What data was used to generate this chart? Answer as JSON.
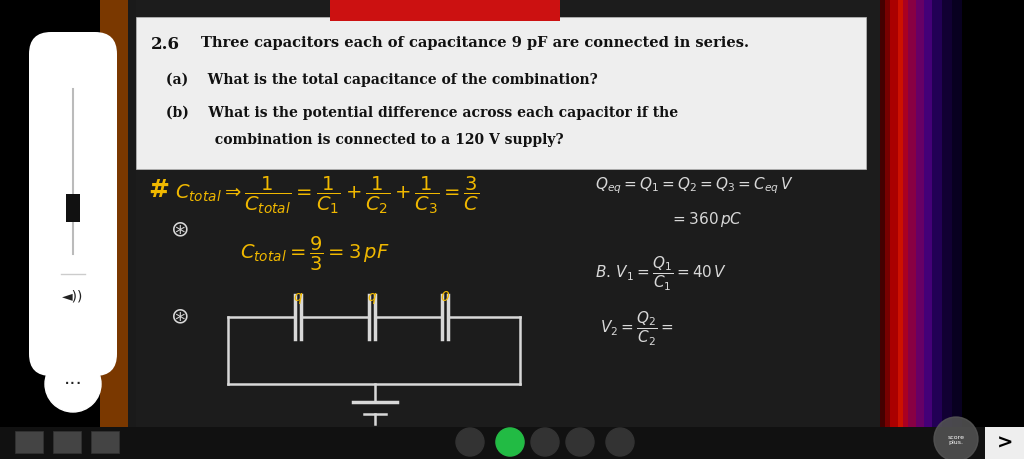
{
  "bg_outer": "#000000",
  "bg_center": "#1e1e1e",
  "left_panel_color": "#000000",
  "right_gradient_colors": [
    "#cc0000",
    "#8800aa",
    "#000000"
  ],
  "top_red_bar": "#cc1111",
  "white_box_bg": "#e8e8e8",
  "question_number": "2.6",
  "question_text": "Three capacitors each of capacitance 9 pF are connected in series.",
  "part_a": "(a)    What is the total capacitance of the combination?",
  "part_b_line1": "(b)    What is the potential difference across each capacitor if the",
  "part_b_line2": "          combination is connected to a 120 V supply?",
  "chalk_yellow": "#f0b800",
  "chalk_white": "#d8d8d8",
  "slider_white": "#ffffff",
  "slider_handle": "#222222",
  "volume_icon_color": "#111111",
  "dots_color": "#111111",
  "bottom_bar_bg": "#111111",
  "green_btn": "#22bb44",
  "scoreplus_bg": "#555555",
  "scoreplus_text": "#ffffff"
}
